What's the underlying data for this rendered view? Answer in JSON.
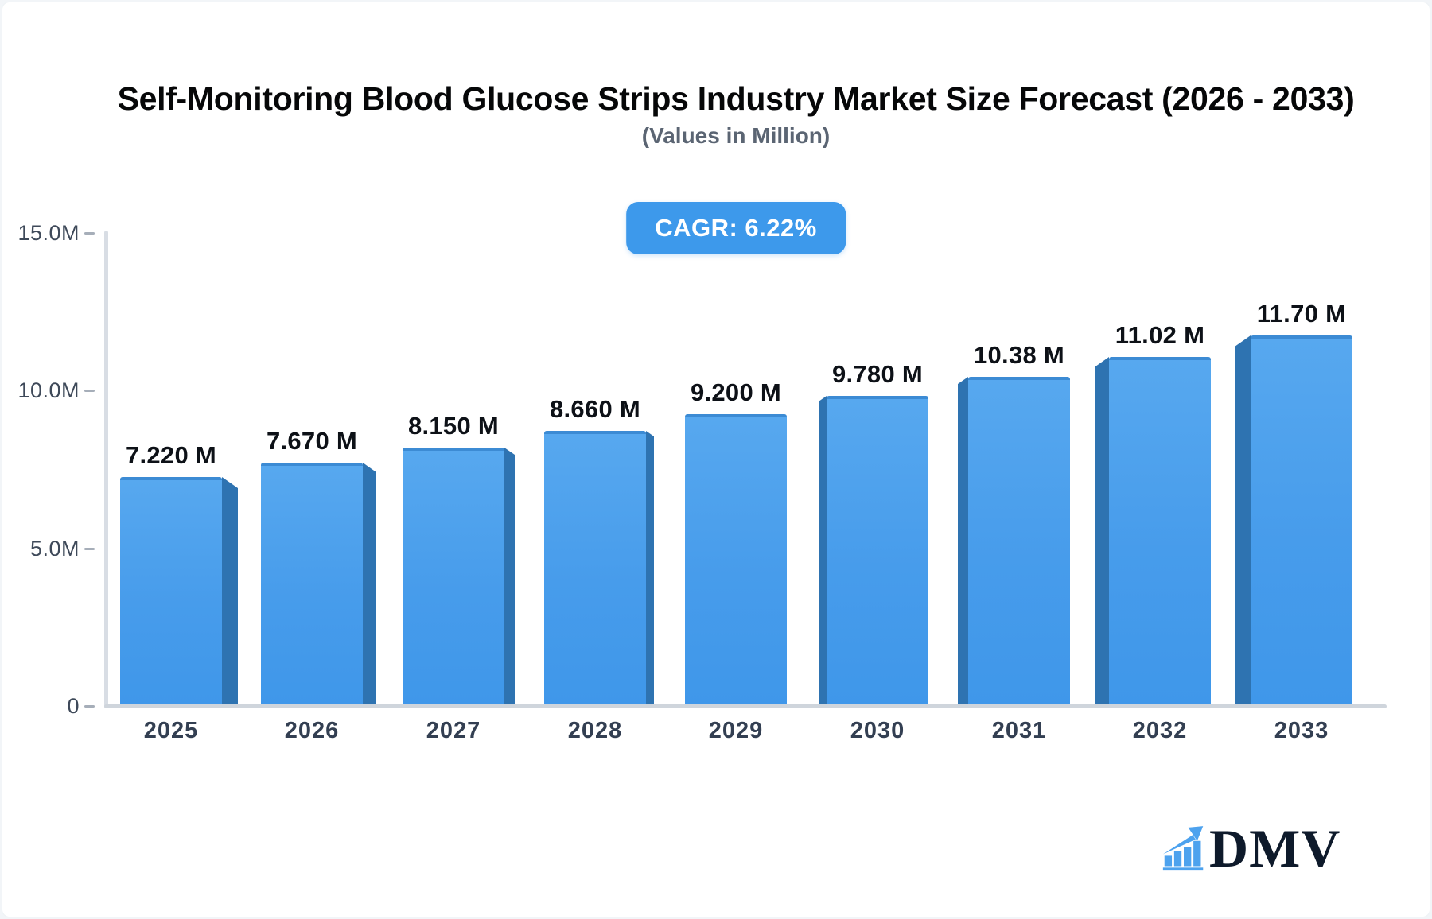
{
  "title": "Self-Monitoring Blood Glucose Strips Industry Market Size Forecast (2026 - 2033)",
  "subtitle": "(Values in Million)",
  "cagr_badge": "CAGR: 6.22%",
  "logo": {
    "text": "DMV",
    "icon": "growth-bars-arrow-icon"
  },
  "colors": {
    "badge_bg": "#3d99eb",
    "bar_front_top": "#57a8ef",
    "bar_front_bottom": "#3f97ea",
    "bar_side": "#2e73b1",
    "bar_top_edge": "#3c8bd4",
    "axis_line": "#d8dde4",
    "tick_dash": "#a6aeb9",
    "y_label_text": "#3e4959",
    "x_label_text": "#333f52",
    "value_label_text": "#0d1117",
    "logo_icon_blue": "#4da2ee",
    "logo_text_navy": "#0e1a2b"
  },
  "chart_data": {
    "type": "bar",
    "title": "Self-Monitoring Blood Glucose Strips Industry Market Size Forecast (2026 - 2033)",
    "subtitle": "(Values in Million)",
    "unit": "Million",
    "cagr": "6.22%",
    "categories": [
      "2025",
      "2026",
      "2027",
      "2028",
      "2029",
      "2030",
      "2031",
      "2032",
      "2033"
    ],
    "values": [
      7.22,
      7.67,
      8.15,
      8.66,
      9.2,
      9.78,
      10.38,
      11.02,
      11.7
    ],
    "value_labels": [
      "7.220 M",
      "7.670 M",
      "8.150 M",
      "8.660 M",
      "9.200 M",
      "9.780 M",
      "10.38 M",
      "11.02 M",
      "11.70 M"
    ],
    "y_ticks": [
      {
        "label": "15.0M",
        "value": 15
      },
      {
        "label": "10.0M",
        "value": 10
      },
      {
        "label": "5.0M",
        "value": 5
      },
      {
        "label": "0",
        "value": 0
      }
    ],
    "ylim": [
      0,
      15
    ],
    "xlabel": "",
    "ylabel": "",
    "grid": false,
    "legend": false,
    "style": "3d-perspective-bars, center-vanishing-point"
  }
}
